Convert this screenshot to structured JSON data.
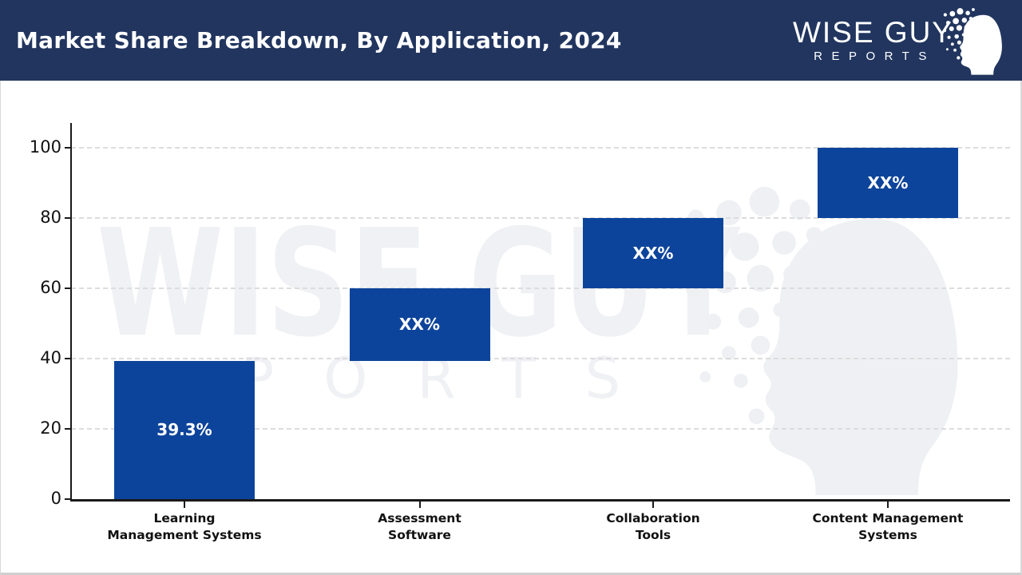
{
  "header": {
    "title": "Market Share Breakdown, By Application, 2024",
    "brand": {
      "line1": "WISE GUY",
      "line2": "REPORTS"
    },
    "bg_color": "#21355f"
  },
  "watermark": {
    "line1": "WISE GUY",
    "line2": "PORTS"
  },
  "chart_data": {
    "type": "bar",
    "subtype": "waterfall",
    "title": "Market Share Breakdown, By Application, 2024",
    "categories": [
      "Learning\nManagement Systems",
      "Assessment\nSoftware",
      "Collaboration\nTools",
      "Content Management\nSystems"
    ],
    "segments": [
      {
        "category": "Learning Management Systems",
        "start": 0,
        "end": 39.3,
        "label": "39.3%"
      },
      {
        "category": "Assessment Software",
        "start": 39.3,
        "end": 60,
        "label": "XX%"
      },
      {
        "category": "Collaboration Tools",
        "start": 60,
        "end": 80,
        "label": "XX%"
      },
      {
        "category": "Content Management Systems",
        "start": 80,
        "end": 100,
        "label": "XX%"
      }
    ],
    "yticks": [
      "0",
      "20",
      "40",
      "60",
      "80",
      "100"
    ],
    "ylim": [
      0,
      107
    ],
    "xlabel": "",
    "ylabel": "",
    "grid": "horizontal-dashed",
    "legend": null,
    "bar_color": "#0d449b",
    "value_label_color": "#ffffff",
    "axis_color": "#1a1a1a"
  }
}
